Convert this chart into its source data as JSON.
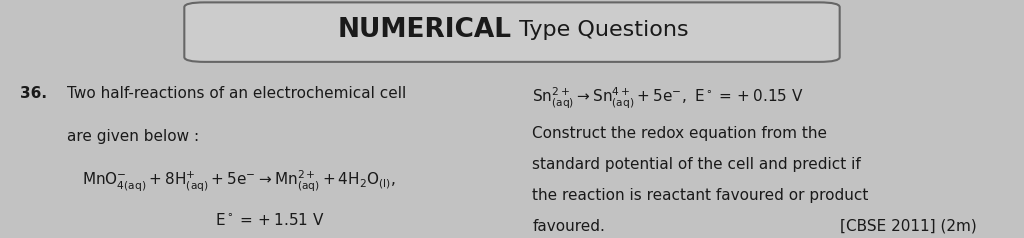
{
  "background_color": "#c2c2c2",
  "title_bold": "NUMERICAL",
  "title_regular": " Type Questions",
  "title_box_facecolor": "#cccccc",
  "title_box_edgecolor": "#666666",
  "text_color": "#1a1a1a",
  "question_num": "36.",
  "q_line1": "Two half-reactions of an electrochemical cell",
  "q_line2": "are given below :",
  "eq1": "$\\mathrm{MnO^{-}_{4(aq)} + 8H^{+}_{(aq)} + 5e^{-} \\rightarrow Mn^{2+}_{(aq)} + 4H_2O_{(l)},}$",
  "eq1_e": "$\\mathrm{E^\\circ = +1.51\\ V}$",
  "eq2": "$\\mathrm{Sn^{2+}_{(aq)} \\rightarrow Sn^{4+}_{(aq)} + 5e^{-},\\ E^\\circ = +0.15\\ V}$",
  "r_line1": "Construct the redox equation from the",
  "r_line2": "standard potential of the cell and predict if",
  "r_line3": "the reaction is reactant favoured or product",
  "r_line4": "favoured.",
  "r_ref": "[CBSE 2011] (2m)",
  "fs_title_bold": 19,
  "fs_title_reg": 16,
  "fs_body": 11
}
